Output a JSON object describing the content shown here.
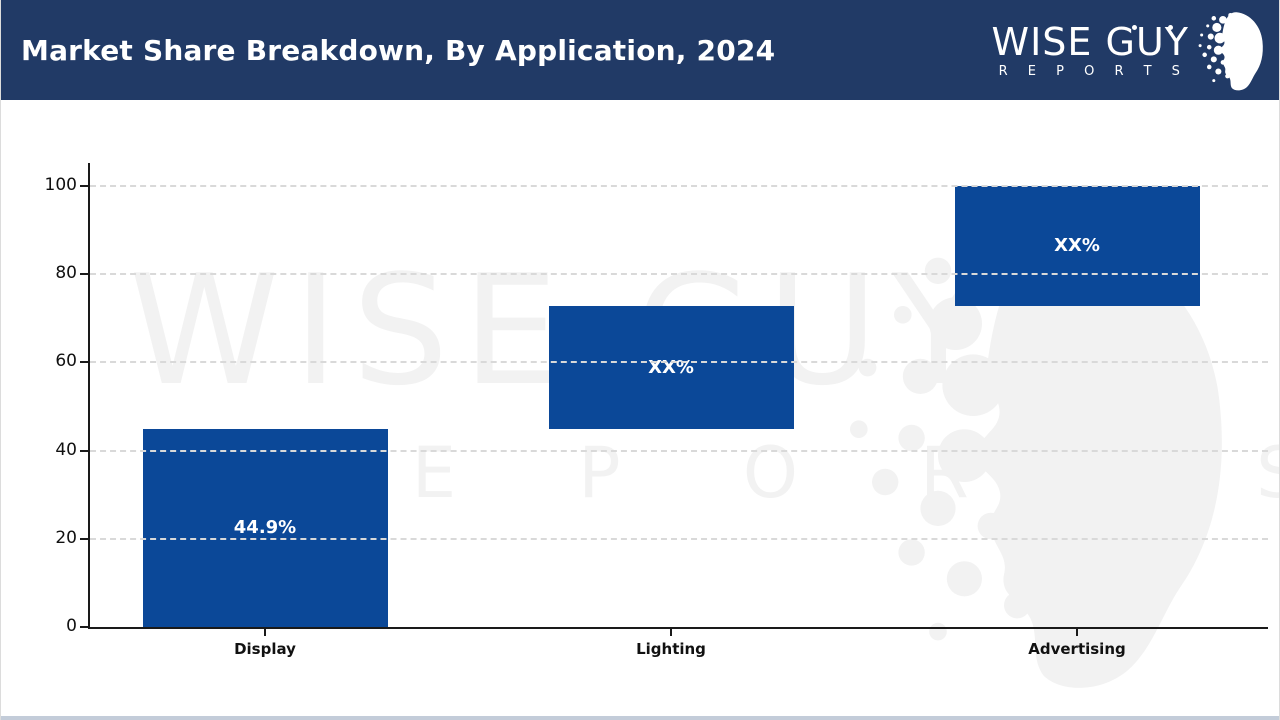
{
  "header": {
    "title": "Market Share Breakdown, By Application, 2024",
    "bg_color": "#213a66",
    "logo": {
      "line1": "WISE GUY",
      "line2": "R E P O R T S"
    }
  },
  "watermark": {
    "line1": "WISE GUY",
    "line2": "R E P O R T S",
    "color": "#f2f2f2"
  },
  "footer": {
    "bar_color": "#c3ccd9"
  },
  "chart_data": {
    "type": "bar",
    "subtype": "stepped-cumulative-waterfall",
    "title": "Market Share Breakdown, By Application, 2024",
    "categories": [
      "Display",
      "Lighting",
      "Advertising"
    ],
    "series": [
      {
        "name": "Display",
        "start": 0,
        "end": 44.9,
        "label": "44.9%"
      },
      {
        "name": "Lighting",
        "start": 44.9,
        "end": 72.8,
        "label": "XX%"
      },
      {
        "name": "Advertising",
        "start": 72.8,
        "end": 100,
        "label": "XX%"
      }
    ],
    "xlabel": "",
    "ylabel": "",
    "ylim": [
      0,
      100
    ],
    "yticks": [
      0,
      20,
      40,
      60,
      80,
      100
    ],
    "grid": "dashed-horizontal",
    "legend": "none",
    "bar_color": "#0b4898",
    "bar_label_color": "#ffffff"
  }
}
